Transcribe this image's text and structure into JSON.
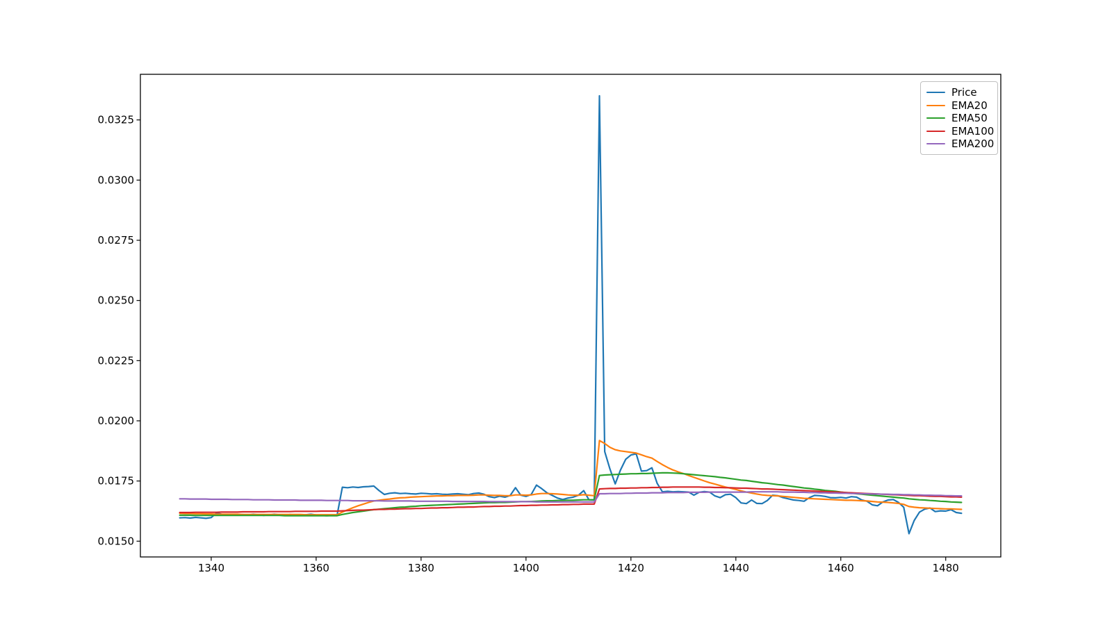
{
  "figure": {
    "background": "#ffffff"
  },
  "chart_data": {
    "type": "line",
    "title": "",
    "xlabel": "",
    "ylabel": "",
    "grid": false,
    "legend_position": "upper right",
    "xlim": [
      1326.5,
      1490.5
    ],
    "ylim": [
      0.014345,
      0.034395
    ],
    "xticks": [
      1340,
      1360,
      1380,
      1400,
      1420,
      1440,
      1460,
      1480
    ],
    "yticks": [
      0.015,
      0.0175,
      0.02,
      0.0225,
      0.025,
      0.0275,
      0.03,
      0.0325
    ],
    "ytick_labels": [
      "0.0150",
      "0.0175",
      "0.0200",
      "0.0225",
      "0.0250",
      "0.0275",
      "0.0300",
      "0.0325"
    ],
    "x": [
      1334,
      1335,
      1336,
      1337,
      1338,
      1339,
      1340,
      1341,
      1342,
      1343,
      1344,
      1345,
      1346,
      1347,
      1348,
      1349,
      1350,
      1351,
      1352,
      1353,
      1354,
      1355,
      1356,
      1357,
      1358,
      1359,
      1360,
      1361,
      1362,
      1363,
      1364,
      1365,
      1366,
      1367,
      1368,
      1369,
      1370,
      1371,
      1372,
      1373,
      1374,
      1375,
      1376,
      1377,
      1378,
      1379,
      1380,
      1381,
      1382,
      1383,
      1384,
      1385,
      1386,
      1387,
      1388,
      1389,
      1390,
      1391,
      1392,
      1393,
      1394,
      1395,
      1396,
      1397,
      1398,
      1399,
      1400,
      1401,
      1402,
      1403,
      1404,
      1405,
      1406,
      1407,
      1408,
      1409,
      1410,
      1411,
      1412,
      1413,
      1414,
      1415,
      1416,
      1417,
      1418,
      1419,
      1420,
      1421,
      1422,
      1423,
      1424,
      1425,
      1426,
      1427,
      1428,
      1429,
      1430,
      1431,
      1432,
      1433,
      1434,
      1435,
      1436,
      1437,
      1438,
      1439,
      1440,
      1441,
      1442,
      1443,
      1444,
      1445,
      1446,
      1447,
      1448,
      1449,
      1450,
      1451,
      1452,
      1453,
      1454,
      1455,
      1456,
      1457,
      1458,
      1459,
      1460,
      1461,
      1462,
      1463,
      1464,
      1465,
      1466,
      1467,
      1468,
      1469,
      1470,
      1471,
      1472,
      1473,
      1474,
      1475,
      1476,
      1477,
      1478,
      1479,
      1480,
      1481,
      1482,
      1483
    ],
    "series": [
      {
        "name": "Price",
        "color": "#1f77b4",
        "values": [
          0.01597,
          0.01598,
          0.01596,
          0.01599,
          0.01597,
          0.01595,
          0.01598,
          0.01617,
          0.01612,
          0.01609,
          0.01611,
          0.01608,
          0.01611,
          0.01609,
          0.01612,
          0.0161,
          0.01607,
          0.01609,
          0.01612,
          0.0161,
          0.01608,
          0.01611,
          0.01609,
          0.01607,
          0.0161,
          0.01612,
          0.01609,
          0.01607,
          0.01606,
          0.01607,
          0.01609,
          0.01724,
          0.01722,
          0.01725,
          0.01723,
          0.01726,
          0.01727,
          0.01729,
          0.0171,
          0.01694,
          0.01699,
          0.01701,
          0.01698,
          0.01699,
          0.01697,
          0.01696,
          0.01699,
          0.01698,
          0.01696,
          0.01697,
          0.01695,
          0.01694,
          0.01696,
          0.01697,
          0.01695,
          0.01693,
          0.01698,
          0.017,
          0.01695,
          0.01685,
          0.01681,
          0.01687,
          0.01683,
          0.0169,
          0.01722,
          0.01691,
          0.01686,
          0.01694,
          0.01733,
          0.01718,
          0.01701,
          0.0169,
          0.01679,
          0.01673,
          0.01679,
          0.01683,
          0.01691,
          0.0171,
          0.01672,
          0.01671,
          0.0335,
          0.01872,
          0.018,
          0.01738,
          0.01795,
          0.0184,
          0.01858,
          0.01863,
          0.01791,
          0.01793,
          0.01805,
          0.0174,
          0.01705,
          0.01707,
          0.01705,
          0.01706,
          0.01705,
          0.01704,
          0.01691,
          0.01703,
          0.01706,
          0.01704,
          0.01688,
          0.01681,
          0.01693,
          0.01695,
          0.01681,
          0.01659,
          0.01656,
          0.01671,
          0.01657,
          0.01656,
          0.01669,
          0.01691,
          0.01689,
          0.01681,
          0.01676,
          0.01671,
          0.01669,
          0.01666,
          0.01681,
          0.0169,
          0.01689,
          0.01686,
          0.01681,
          0.0168,
          0.01682,
          0.01679,
          0.01685,
          0.01683,
          0.01671,
          0.01666,
          0.01651,
          0.01647,
          0.01663,
          0.01671,
          0.01673,
          0.01661,
          0.01641,
          0.01531,
          0.01586,
          0.01621,
          0.01633,
          0.01638,
          0.01623,
          0.01626,
          0.01625,
          0.01631,
          0.01619,
          0.01616
        ]
      },
      {
        "name": "EMA20",
        "color": "#ff7f0e",
        "values": [
          0.01616,
          0.01615,
          0.01615,
          0.01614,
          0.01614,
          0.01613,
          0.01613,
          0.01612,
          0.01612,
          0.01612,
          0.01612,
          0.01612,
          0.01611,
          0.01611,
          0.01611,
          0.01611,
          0.01611,
          0.01611,
          0.01611,
          0.01611,
          0.01611,
          0.01611,
          0.01611,
          0.01611,
          0.0161,
          0.0161,
          0.0161,
          0.0161,
          0.0161,
          0.0161,
          0.0161,
          0.01621,
          0.0163,
          0.01639,
          0.01647,
          0.01654,
          0.01661,
          0.01667,
          0.0167,
          0.01673,
          0.01675,
          0.01678,
          0.0168,
          0.01681,
          0.01683,
          0.01684,
          0.01685,
          0.01686,
          0.01687,
          0.01688,
          0.01688,
          0.01689,
          0.01689,
          0.0169,
          0.0169,
          0.0169,
          0.01691,
          0.01692,
          0.01692,
          0.01691,
          0.0169,
          0.0169,
          0.01689,
          0.01689,
          0.01692,
          0.01692,
          0.01691,
          0.01692,
          0.01696,
          0.01698,
          0.01698,
          0.01697,
          0.01696,
          0.01694,
          0.01692,
          0.01691,
          0.01691,
          0.01693,
          0.01691,
          0.01689,
          0.01918,
          0.01906,
          0.0189,
          0.0188,
          0.01875,
          0.01872,
          0.01869,
          0.01866,
          0.01859,
          0.01851,
          0.01845,
          0.01831,
          0.01818,
          0.01806,
          0.01796,
          0.01788,
          0.01781,
          0.01773,
          0.01765,
          0.01758,
          0.0175,
          0.01743,
          0.01737,
          0.01731,
          0.01725,
          0.0172,
          0.01715,
          0.01709,
          0.01704,
          0.017,
          0.01696,
          0.01692,
          0.0169,
          0.01689,
          0.01688,
          0.01686,
          0.01684,
          0.01682,
          0.0168,
          0.01678,
          0.01677,
          0.01676,
          0.01675,
          0.01674,
          0.01673,
          0.01672,
          0.01671,
          0.0167,
          0.0167,
          0.01669,
          0.01668,
          0.01667,
          0.01665,
          0.01663,
          0.01662,
          0.01661,
          0.01659,
          0.01657,
          0.01653,
          0.01644,
          0.01641,
          0.01639,
          0.01638,
          0.01637,
          0.01636,
          0.01635,
          0.01634,
          0.01634,
          0.01633,
          0.01632
        ]
      },
      {
        "name": "EMA50",
        "color": "#2ca02c",
        "values": [
          0.01608,
          0.01608,
          0.01608,
          0.01607,
          0.01607,
          0.01607,
          0.01607,
          0.01607,
          0.01607,
          0.01607,
          0.01607,
          0.01607,
          0.01607,
          0.01607,
          0.01607,
          0.01607,
          0.01607,
          0.01607,
          0.01607,
          0.01607,
          0.01606,
          0.01606,
          0.01606,
          0.01606,
          0.01606,
          0.01606,
          0.01606,
          0.01606,
          0.01606,
          0.01606,
          0.01606,
          0.01611,
          0.01615,
          0.01619,
          0.01622,
          0.01625,
          0.01628,
          0.01631,
          0.01633,
          0.01635,
          0.01637,
          0.01639,
          0.01641,
          0.01642,
          0.01644,
          0.01645,
          0.01647,
          0.01648,
          0.01649,
          0.0165,
          0.01651,
          0.01652,
          0.01653,
          0.01654,
          0.01655,
          0.01656,
          0.01657,
          0.01658,
          0.01659,
          0.0166,
          0.0166,
          0.01661,
          0.01661,
          0.01662,
          0.01663,
          0.01664,
          0.01664,
          0.01665,
          0.01666,
          0.01667,
          0.01668,
          0.01668,
          0.01669,
          0.01669,
          0.0167,
          0.0167,
          0.01671,
          0.01672,
          0.01672,
          0.01672,
          0.01773,
          0.01775,
          0.01776,
          0.01777,
          0.01778,
          0.01779,
          0.0178,
          0.0178,
          0.01781,
          0.01781,
          0.01782,
          0.01783,
          0.01784,
          0.01784,
          0.01783,
          0.01782,
          0.0178,
          0.01778,
          0.01776,
          0.01774,
          0.01772,
          0.0177,
          0.01768,
          0.01765,
          0.01763,
          0.0176,
          0.01757,
          0.01754,
          0.01752,
          0.01749,
          0.01746,
          0.01743,
          0.01741,
          0.01738,
          0.01735,
          0.01733,
          0.0173,
          0.01727,
          0.01724,
          0.01721,
          0.01719,
          0.01716,
          0.01714,
          0.01711,
          0.01709,
          0.01707,
          0.01704,
          0.01702,
          0.017,
          0.01697,
          0.01695,
          0.01693,
          0.01691,
          0.01689,
          0.01687,
          0.01685,
          0.01683,
          0.01681,
          0.01679,
          0.01676,
          0.01674,
          0.01672,
          0.01671,
          0.01669,
          0.01668,
          0.01666,
          0.01665,
          0.01663,
          0.01662,
          0.01661
        ]
      },
      {
        "name": "EMA100",
        "color": "#d62728",
        "values": [
          0.01619,
          0.01619,
          0.01619,
          0.0162,
          0.0162,
          0.0162,
          0.0162,
          0.0162,
          0.01621,
          0.01621,
          0.01621,
          0.01621,
          0.01622,
          0.01622,
          0.01622,
          0.01622,
          0.01622,
          0.01623,
          0.01623,
          0.01623,
          0.01623,
          0.01623,
          0.01624,
          0.01624,
          0.01624,
          0.01624,
          0.01624,
          0.01625,
          0.01625,
          0.01625,
          0.01625,
          0.01626,
          0.01627,
          0.01628,
          0.01629,
          0.01629,
          0.0163,
          0.01631,
          0.01632,
          0.01632,
          0.01633,
          0.01633,
          0.01634,
          0.01635,
          0.01635,
          0.01636,
          0.01636,
          0.01637,
          0.01638,
          0.01638,
          0.01639,
          0.01639,
          0.0164,
          0.01641,
          0.01641,
          0.01642,
          0.01642,
          0.01643,
          0.01644,
          0.01644,
          0.01645,
          0.01645,
          0.01646,
          0.01646,
          0.01647,
          0.01648,
          0.01648,
          0.01649,
          0.01649,
          0.0165,
          0.0165,
          0.01651,
          0.01651,
          0.01652,
          0.01652,
          0.01653,
          0.01653,
          0.01654,
          0.01654,
          0.01654,
          0.01717,
          0.01718,
          0.01719,
          0.01719,
          0.0172,
          0.0172,
          0.01721,
          0.01721,
          0.01722,
          0.01722,
          0.01723,
          0.01723,
          0.01724,
          0.01724,
          0.01725,
          0.01725,
          0.01725,
          0.01725,
          0.01725,
          0.01725,
          0.01724,
          0.01724,
          0.01723,
          0.01723,
          0.01722,
          0.01722,
          0.01721,
          0.0172,
          0.0172,
          0.01719,
          0.01718,
          0.01717,
          0.01717,
          0.01716,
          0.01715,
          0.01714,
          0.01713,
          0.01712,
          0.01711,
          0.0171,
          0.01709,
          0.01708,
          0.01707,
          0.01706,
          0.01705,
          0.01704,
          0.01703,
          0.01702,
          0.01701,
          0.017,
          0.01699,
          0.01698,
          0.01697,
          0.01696,
          0.01695,
          0.01694,
          0.01693,
          0.01692,
          0.01691,
          0.0169,
          0.01689,
          0.01689,
          0.01688,
          0.01687,
          0.01686,
          0.01686,
          0.01685,
          0.01684,
          0.01684,
          0.01683
        ]
      },
      {
        "name": "EMA200",
        "color": "#9467bd",
        "values": [
          0.01676,
          0.01676,
          0.01675,
          0.01675,
          0.01675,
          0.01675,
          0.01674,
          0.01674,
          0.01674,
          0.01674,
          0.01673,
          0.01673,
          0.01673,
          0.01673,
          0.01672,
          0.01672,
          0.01672,
          0.01672,
          0.01671,
          0.01671,
          0.01671,
          0.01671,
          0.01671,
          0.0167,
          0.0167,
          0.0167,
          0.0167,
          0.0167,
          0.01669,
          0.01669,
          0.01669,
          0.01669,
          0.01669,
          0.01668,
          0.01668,
          0.01668,
          0.01668,
          0.01668,
          0.01668,
          0.01667,
          0.01667,
          0.01667,
          0.01667,
          0.01667,
          0.01667,
          0.01666,
          0.01666,
          0.01666,
          0.01666,
          0.01666,
          0.01666,
          0.01666,
          0.01665,
          0.01665,
          0.01665,
          0.01665,
          0.01665,
          0.01665,
          0.01665,
          0.01664,
          0.01664,
          0.01664,
          0.01664,
          0.01664,
          0.01664,
          0.01664,
          0.01664,
          0.01664,
          0.01663,
          0.01663,
          0.01663,
          0.01663,
          0.01663,
          0.01663,
          0.01663,
          0.01663,
          0.01663,
          0.01663,
          0.01663,
          0.01663,
          0.01697,
          0.01697,
          0.01698,
          0.01698,
          0.01698,
          0.01699,
          0.01699,
          0.017,
          0.017,
          0.017,
          0.01701,
          0.01701,
          0.01701,
          0.01702,
          0.01702,
          0.01702,
          0.01702,
          0.01703,
          0.01703,
          0.01703,
          0.01703,
          0.01704,
          0.01704,
          0.01704,
          0.01704,
          0.01704,
          0.01704,
          0.01704,
          0.01704,
          0.01705,
          0.01705,
          0.01705,
          0.01705,
          0.01705,
          0.01705,
          0.01704,
          0.01704,
          0.01704,
          0.01703,
          0.01703,
          0.01702,
          0.01702,
          0.01701,
          0.01701,
          0.017,
          0.017,
          0.01699,
          0.01699,
          0.01698,
          0.01698,
          0.01697,
          0.01697,
          0.01696,
          0.01696,
          0.01695,
          0.01695,
          0.01694,
          0.01694,
          0.01693,
          0.01693,
          0.01692,
          0.01692,
          0.01691,
          0.01691,
          0.0169,
          0.0169,
          0.01689,
          0.01689,
          0.01688,
          0.01688
        ]
      }
    ]
  }
}
